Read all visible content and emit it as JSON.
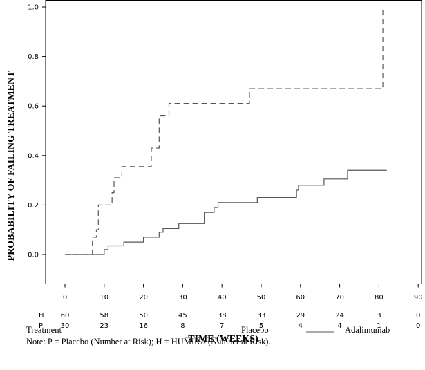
{
  "chart_data": {
    "type": "line",
    "step": true,
    "ylabel": "PROBABILITY OF FAILING TREATMENT",
    "xlabel": "TIME (WEEKS)",
    "xlim": [
      0,
      90
    ],
    "ylim": [
      0,
      1.0
    ],
    "x_ticks": [
      0,
      10,
      20,
      30,
      40,
      50,
      60,
      70,
      80,
      90
    ],
    "y_ticks": [
      0.0,
      0.2,
      0.4,
      0.6,
      0.8,
      1.0
    ],
    "x_tick_labels": [
      "0",
      "10",
      "20",
      "30",
      "40",
      "50",
      "60",
      "70",
      "80",
      "90"
    ],
    "y_tick_labels": [
      "0.0",
      "0.2",
      "0.4",
      "0.6",
      "0.8",
      "1.0"
    ],
    "series": [
      {
        "name": "Placebo",
        "style": "dashed",
        "color": "#555555",
        "points": [
          [
            0,
            0.0
          ],
          [
            7,
            0.0
          ],
          [
            7,
            0.07
          ],
          [
            8,
            0.07
          ],
          [
            8,
            0.1
          ],
          [
            8.5,
            0.1
          ],
          [
            8.5,
            0.2
          ],
          [
            12,
            0.2
          ],
          [
            12,
            0.25
          ],
          [
            12.5,
            0.25
          ],
          [
            12.5,
            0.31
          ],
          [
            14.5,
            0.31
          ],
          [
            14.5,
            0.355
          ],
          [
            22,
            0.355
          ],
          [
            22,
            0.43
          ],
          [
            24,
            0.43
          ],
          [
            24,
            0.56
          ],
          [
            26.5,
            0.56
          ],
          [
            26.5,
            0.61
          ],
          [
            47,
            0.61
          ],
          [
            47,
            0.67
          ],
          [
            81,
            0.67
          ],
          [
            81,
            0.99
          ]
        ]
      },
      {
        "name": "Adalimumab",
        "style": "solid",
        "color": "#555555",
        "points": [
          [
            0,
            0.0
          ],
          [
            10,
            0.0
          ],
          [
            10,
            0.02
          ],
          [
            11,
            0.02
          ],
          [
            11,
            0.035
          ],
          [
            15,
            0.035
          ],
          [
            15,
            0.05
          ],
          [
            20,
            0.05
          ],
          [
            20,
            0.07
          ],
          [
            24,
            0.07
          ],
          [
            24,
            0.09
          ],
          [
            25,
            0.09
          ],
          [
            25,
            0.105
          ],
          [
            29,
            0.105
          ],
          [
            29,
            0.125
          ],
          [
            35.5,
            0.125
          ],
          [
            35.5,
            0.17
          ],
          [
            38,
            0.17
          ],
          [
            38,
            0.19
          ],
          [
            39,
            0.19
          ],
          [
            39,
            0.21
          ],
          [
            49,
            0.21
          ],
          [
            49,
            0.23
          ],
          [
            59,
            0.23
          ],
          [
            59,
            0.26
          ],
          [
            59.5,
            0.26
          ],
          [
            59.5,
            0.28
          ],
          [
            66,
            0.28
          ],
          [
            66,
            0.305
          ],
          [
            72,
            0.305
          ],
          [
            72,
            0.34
          ],
          [
            82,
            0.34
          ]
        ]
      }
    ]
  },
  "risk_table": {
    "rows": [
      {
        "label": "H",
        "values": [
          "60",
          "58",
          "50",
          "45",
          "38",
          "33",
          "29",
          "24",
          "3",
          "0"
        ]
      },
      {
        "label": "P",
        "values": [
          "30",
          "23",
          "16",
          "8",
          "7",
          "5",
          "4",
          "4",
          "1",
          "0"
        ]
      }
    ]
  },
  "legend": {
    "title": "Treatment",
    "items": [
      {
        "label": "Placebo",
        "style": "dashed"
      },
      {
        "label": "Adalimumab",
        "style": "solid"
      }
    ]
  },
  "note": "Note: P = Placebo (Number at Risk); H = HUMIRA (Number at Risk)."
}
